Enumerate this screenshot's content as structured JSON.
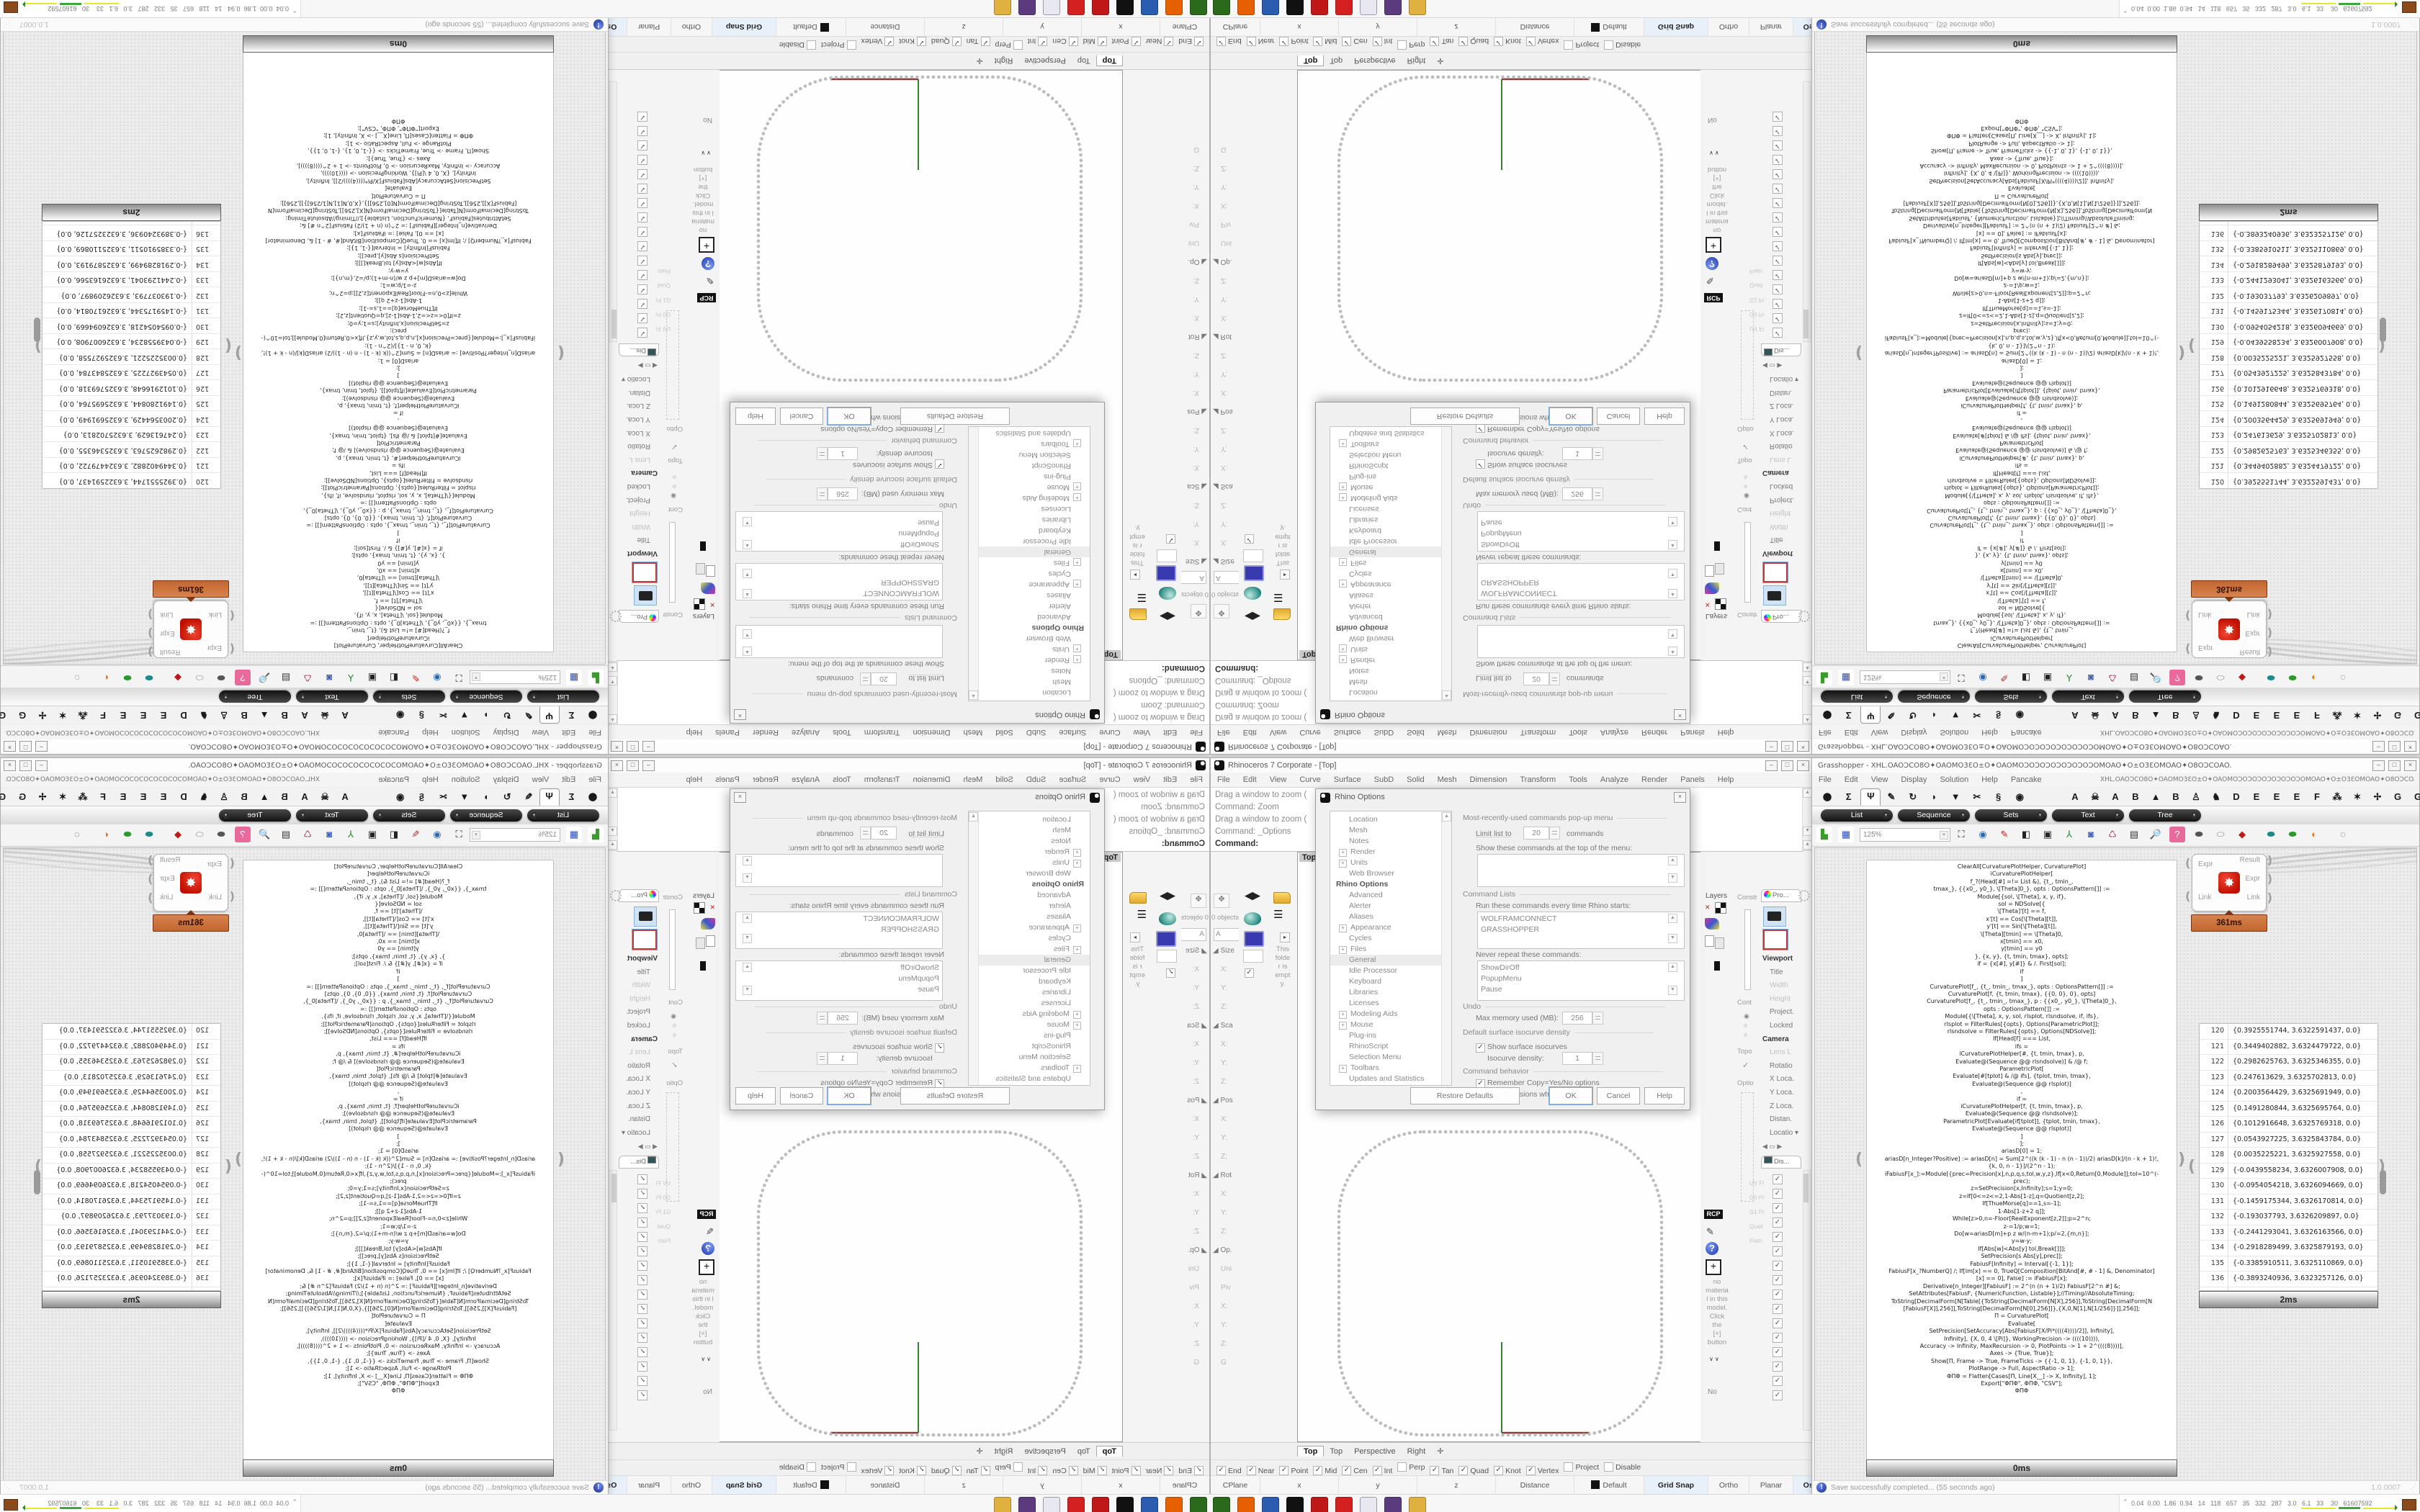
{
  "rhino": {
    "title": "Rhinoceros 7 Corporate - [Top]",
    "menus": [
      "File",
      "Edit",
      "View",
      "Curve",
      "Surface",
      "SubD",
      "Solid",
      "Mesh",
      "Dimension",
      "Transform",
      "Tools",
      "Analyze",
      "Render",
      "Panels",
      "Help"
    ],
    "command_lines": [
      "Drag a window to zoom (",
      "Command: Zoom",
      "Drag a window to zoom (",
      "Command: _Options",
      "Command:"
    ],
    "left_dock": {
      "objects_label": "0 objects",
      "field_value": "A",
      "empty_message": [
        "This",
        "folde",
        "r is",
        "empt",
        "y."
      ],
      "rows": [
        {
          "t": "sec",
          "l": "Size"
        },
        {
          "t": "ax",
          "l": "X:"
        },
        {
          "t": "ax",
          "l": "Y:"
        },
        {
          "t": "ax",
          "l": "Z:"
        },
        {
          "t": "sec",
          "l": "Sca"
        },
        {
          "t": "ax",
          "l": "X:"
        },
        {
          "t": "ax",
          "l": "Y:"
        },
        {
          "t": "ax",
          "l": "Z:"
        },
        {
          "t": "sec",
          "l": "Pos"
        },
        {
          "t": "ax",
          "l": "X:"
        },
        {
          "t": "ax",
          "l": "Y:"
        },
        {
          "t": "ax",
          "l": "Z:"
        },
        {
          "t": "sec",
          "l": "Rot"
        },
        {
          "t": "ax",
          "l": "X:"
        },
        {
          "t": "ax",
          "l": "Y:"
        },
        {
          "t": "ax",
          "l": "Z:"
        },
        {
          "t": "sec",
          "l": "Op."
        },
        {
          "t": "ax",
          "l": "Uni"
        },
        {
          "t": "ax",
          "l": "Piv"
        },
        {
          "t": "ax",
          "l": "X:"
        },
        {
          "t": "ax",
          "l": "Y:"
        },
        {
          "t": "ax",
          "l": "Z:"
        },
        {
          "t": "ax",
          "l": "G"
        }
      ]
    },
    "viewport": {
      "title": "Top",
      "tabs": [
        "Top",
        "Top",
        "Perspective",
        "Right"
      ],
      "new_tab": "✛"
    },
    "right_dock": {
      "layers_title": "Layers",
      "constraint_labels": [
        "Constr",
        "Cont",
        "Topo",
        "Optio"
      ],
      "properties_tab": "Pro...",
      "display_tab": "Dis...",
      "property_rows": [
        {
          "label": "Viewport",
          "kind": "sec"
        },
        {
          "label": "Title",
          "kind": ""
        },
        {
          "label": "Width",
          "kind": "muted"
        },
        {
          "label": "Height",
          "kind": "muted"
        },
        {
          "label": "Project.",
          "kind": ""
        },
        {
          "label": "Locked",
          "kind": ""
        },
        {
          "label": "Camera",
          "kind": "sec"
        },
        {
          "label": "Lens L",
          "kind": "muted"
        },
        {
          "label": "Rotatio",
          "kind": ""
        },
        {
          "label": "X Loca.",
          "kind": ""
        },
        {
          "label": "Y Loca.",
          "kind": ""
        },
        {
          "label": "Z Loca.",
          "kind": ""
        },
        {
          "label": "Distan.",
          "kind": ""
        },
        {
          "label": "Locatio",
          "kind": ""
        }
      ],
      "display_micro_labels": [
        "UV Fl",
        "G0 Pr",
        "G1 Pr",
        "Quali",
        "Flatn"
      ],
      "display_check_count": 16,
      "rcp_label": "RCP",
      "materials_lines": [
        "no",
        "materia",
        "l in this",
        "model.",
        "Click",
        "the",
        "[+]",
        "button"
      ],
      "no_label": "No"
    },
    "osnap": [
      {
        "label": "End",
        "checked": true
      },
      {
        "label": "Near",
        "checked": true
      },
      {
        "label": "Point",
        "checked": true
      },
      {
        "label": "Mid",
        "checked": true
      },
      {
        "label": "Cen",
        "checked": true
      },
      {
        "label": "Int",
        "checked": true
      },
      {
        "label": "Perp",
        "checked": false
      },
      {
        "label": "Tan",
        "checked": true
      },
      {
        "label": "Quad",
        "checked": true
      },
      {
        "label": "Knot",
        "checked": true
      },
      {
        "label": "Vertex",
        "checked": true
      },
      {
        "label": "Project",
        "checked": false
      },
      {
        "label": "Disable",
        "checked": false
      }
    ],
    "statusbar": [
      {
        "label": "CPlane",
        "w": 68
      },
      {
        "label": "x",
        "w": 108
      },
      {
        "label": "y",
        "w": 108
      },
      {
        "label": "z",
        "w": 108
      },
      {
        "label": "Distance",
        "w": 108
      },
      {
        "label": "Default",
        "w": 96,
        "swatch": true
      },
      {
        "label": "Grid Snap",
        "w": 88,
        "active": true
      },
      {
        "label": "Ortho",
        "w": 56
      },
      {
        "label": "Planar",
        "w": 60
      },
      {
        "label": "Osnap",
        "w": 60,
        "active": true
      },
      {
        "label": "SmartTrack",
        "w": 88
      },
      {
        "label": "Gumball",
        "w": 74,
        "active": true
      },
      {
        "label": "Record History",
        "w": 96
      },
      {
        "label": "Filter",
        "w": 50
      }
    ]
  },
  "options_dialog": {
    "title": "Rhino Options",
    "tree": [
      {
        "label": "Location"
      },
      {
        "label": "Mesh"
      },
      {
        "label": "Notes"
      },
      {
        "label": "Render",
        "expand": true
      },
      {
        "label": "Units",
        "expand": true
      },
      {
        "label": "Web Browser"
      },
      {
        "label": "Rhino Options",
        "header": true
      },
      {
        "label": "Advanced"
      },
      {
        "label": "Alerter"
      },
      {
        "label": "Aliases"
      },
      {
        "label": "Appearance",
        "expand": true
      },
      {
        "label": "Cycles"
      },
      {
        "label": "Files",
        "expand": true
      },
      {
        "label": "General",
        "selected": true
      },
      {
        "label": "Idle Processor"
      },
      {
        "label": "Keyboard"
      },
      {
        "label": "Libraries"
      },
      {
        "label": "Licenses"
      },
      {
        "label": "Modeling Aids",
        "expand": true
      },
      {
        "label": "Mouse",
        "expand": true
      },
      {
        "label": "Plug-ins"
      },
      {
        "label": "RhinoScript"
      },
      {
        "label": "Selection Menu"
      },
      {
        "label": "Toolbars",
        "expand": true
      },
      {
        "label": "Updates and Statistics"
      },
      {
        "label": "View",
        "expand": true
      }
    ],
    "mru_group": "Most-recently-used commands pop-up menu",
    "limit_label": "Limit list to",
    "limit_value": "20",
    "limit_suffix": "commands",
    "show_top_label": "Show these commands at the top of the menu:",
    "cmd_lists_group": "Command Lists",
    "run_label": "Run these commands every time Rhino starts:",
    "run_items": [
      "WOLFRAMCONNECT",
      "GRASSHOPPER"
    ],
    "never_label": "Never repeat these commands:",
    "never_items": [
      "ShowDirOff",
      "PopupMenu",
      "Pause"
    ],
    "undo_group": "Undo",
    "max_memory_label": "Max memory used (MB):",
    "max_memory_value": "256",
    "isocurve_group": "Default surface isocurve density",
    "show_isocurves_label": "Show surface isocurves",
    "density_label": "Isocurve density:",
    "density_value": "1",
    "behavior_group": "Command behavior",
    "remember_label": "Remember Copy=Yes/No options",
    "extrusions_label": "Use extrusions when possible",
    "buttons": [
      "Restore Defaults",
      "OK",
      "Cancel",
      "Help"
    ]
  },
  "grasshopper": {
    "title": "Grasshopper - XHL.OAOƆCO8O✦OAOMO3ƐO±O✦OAOMOƆOƆOƆOƆOƆOƆOƆOMOAO✦O±O3ƐOMOAO✦O8OƆCOAO.",
    "menus": [
      "File",
      "Edit",
      "View",
      "Display",
      "Solution",
      "Help",
      "Pancake"
    ],
    "doc_symbols": "XHL.OAOƆCO8O✦OAOMO3ƐO±O✦OAOMOƆOƆOƆOƆOƆOƆOƆOMOAO✦O±O3ƐOMOAO✦O8OƆCOAO.",
    "palette_tabs": [
      {
        "glyph": "⬤",
        "name": "params-icon"
      },
      {
        "glyph": "Σ",
        "name": "maths-icon"
      },
      {
        "glyph": "Ψ",
        "name": "sets-icon",
        "active": true
      },
      {
        "glyph": "✎",
        "name": "vector-icon"
      },
      {
        "glyph": "↻",
        "name": "curve-icon"
      },
      {
        "glyph": "◗",
        "name": "surface-icon"
      },
      {
        "glyph": "▼",
        "name": "mesh-icon"
      },
      {
        "glyph": "✂",
        "name": "intersect-icon"
      },
      {
        "glyph": "§",
        "name": "transform-icon"
      },
      {
        "glyph": "◉",
        "name": "display-icon"
      },
      {
        "glyph": "A",
        "name": "tab-a1"
      },
      {
        "glyph": "☠",
        "name": "tab-skull"
      },
      {
        "glyph": "A",
        "name": "tab-a2"
      },
      {
        "glyph": "B",
        "name": "tab-b1"
      },
      {
        "glyph": "▲",
        "name": "tab-mountain"
      },
      {
        "glyph": "B",
        "name": "tab-b2"
      },
      {
        "glyph": "♙",
        "name": "tab-shield"
      },
      {
        "glyph": "♞",
        "name": "tab-bird"
      },
      {
        "glyph": "D",
        "name": "tab-d"
      },
      {
        "glyph": "E",
        "name": "tab-e1"
      },
      {
        "glyph": "E",
        "name": "tab-e2"
      },
      {
        "glyph": "E",
        "name": "tab-e3"
      },
      {
        "glyph": "F",
        "name": "tab-f"
      },
      {
        "glyph": "⁂",
        "name": "tab-lobster"
      },
      {
        "glyph": "✶",
        "name": "tab-bug"
      },
      {
        "glyph": "✢",
        "name": "tab-moth"
      },
      {
        "glyph": "G",
        "name": "tab-g1"
      },
      {
        "glyph": "G",
        "name": "tab-g2"
      }
    ],
    "categories": [
      "List",
      "Sequence",
      "Sets",
      "Text",
      "Tree"
    ],
    "zoom_value": "125%",
    "toolbar_icons": [
      "new-document",
      "save",
      "zoom-level",
      "zoom-extents",
      "preview-eye",
      "redraw-pen",
      "preview-mesh",
      "preview-shaded",
      "axes",
      "cluster",
      "gha",
      "script-page",
      "find",
      "help-bag",
      "bean-gray",
      "bean-white",
      "gem-red",
      "bean-teal",
      "bean-green",
      "bean-orange",
      "selection-ellipse"
    ],
    "code_lines": [
      "ClearAll[CurvaturePlotHelper, CurvaturePlot]",
      "iCurvaturePlotHelper[",
      "f_?(Head[#] =!= List &), {t_, tmin_,",
      "tmax_}, {{x0_, y0_}, \\[Theta]0_}, opts : OptionsPattern[]] :=",
      "Module[{sol, \\[Theta], x, y, if},",
      "sol = NDSolve[{",
      "\\[Theta]'[t] == f,",
      "x'[t] == Cos[\\[Theta][t]],",
      "y'[t] == Sin[\\[Theta][t]],",
      "\\[Theta][tmin] == \\[Theta]0,",
      "x[tmin] == x0,",
      "y[tmin] == y0",
      "}, {x, y}, {t, tmin, tmax}, opts];",
      "if = {x[#], y[#]} & /. First[sol];",
      "if",
      "]",
      "",
      "CurvaturePlot[f_, {t_, tmin_, tmax_}, opts : OptionsPattern[]] :=",
      "CurvaturePlot[f, {t, tmin, tmax}, {{0, 0}, 0}, opts]",
      "CurvaturePlot[f_, {t_, tmin_, tmax_}, p : {{x0_, y0_}, \\[Theta]0_},",
      "opts : OptionsPattern[]] :=",
      "Module[{\\[Theta], x, y, sol, rlsplot, rlsndsolve, if, ifs},",
      "rlsplot = FilterRules[{opts}, Options[ParametricPlot]];",
      "rlsndsolve = FilterRules[{opts}, Options[NDSolve]];",
      "If[Head[f] === List,",
      "ifs =",
      "iCurvaturePlotHelper[#, {t, tmin, tmax}, p,",
      "Evaluate@(Sequence @@ rlsndsolve)] & /@ f;",
      "ParametricPlot[",
      "Evaluate[#[tplot] & /@ ifs], {tplot, tmin, tmax},",
      "Evaluate@(Sequence @@ rlsplot)]",
      "",
      ",",
      "if =",
      "iCurvaturePlotHelper[f, {t, tmin, tmax}, p,",
      "Evaluate@(Sequence @@ rlsndsolve)];",
      "ParametricPlot[Evaluate[if[tplot]], {tplot, tmin, tmax},",
      "Evaluate@(Sequence @@ rlsplot)]",
      "]",
      "];",
      "",
      "ariasD[0] = 1;",
      "ariasD[n_Integer?Positive] := ariasD[n] = Sum[2^((k (k - 1) - n (n - 1))/2) ariasD[k]/(n - k + 1)!,",
      "{k, 0, n - 1}]/(2^n - 1);",
      "iFabiusF[x_]:=Module[{prec=Precision[x],n,p,q,s,tol,w,y,z},If[x<0,Return[0,Module]];tol=10^(-",
      "prec);",
      "z=SetPrecision[x,Infinity];s=1;y=0;",
      "z=If[0<=z<=2,1-Abs[1-z],q=Quotient[z,2];",
      "If[ThueMorse[q]==1,s=-1];",
      "1-Abs[1-z+2 q]];",
      "While[z>0,n=-Floor[RealExponent[z,2]];p=2^n;",
      "z-=1/p;w=1;",
      "Do[w=ariasD[m]+p z w/(n-m+1);p/=2,{m,n}];",
      "y=w-y;",
      "If[Abs[w]<Abs[y] tol,Break[]]];",
      "SetPrecision[s Abs[y],prec]];",
      "FabiusF[Infinity] = Interval[{-1, 1}];",
      "FabiusF[x_?NumberQ] /; If[Im[x] == 0, TrueQ[Composition[BitAnd[#, # - 1] &, Denominator]",
      "[x] == 0], False] := iFabiusF[x];",
      "Derivative[n_Integer][FabiusF] := 2^(n (n + 1)/2) FabiusF[2^n #] &;",
      "SetAttributes[FabiusF, {NumericFunction, Listable}];//Timing//AbsoluteTiming;",
      "",
      "ToString[DecimalForm[N[Table[{ToString[DecimalForm[N[X],256]],ToString[DecimalForm[N",
      "[FabiusF[X]],256]],ToString[DecimalForm[N[0],256]]},{X,0,N[1],N[1/256]}]],256]];",
      "",
      "Π = CurvaturePlot[",
      "Evaluate[",
      "SetPrecision[SetAccuracy[Abs[FabiusF[X/Pi*((((4))))/2]], Infinity],",
      "Infinity], {X, 0, 4 \\[Pi]}, WorkingPrecision -> ((((10)))),",
      "Accuracy -> Infinity, MaxRecursion -> 0, PlotPoints -> 1 + 2^((((8))))],",
      "Axes -> {True, True}];",
      "Show[Π, Frame -> True, FrameTicks -> {{-1, 0, 1}, {-1, 0, 1}},",
      "PlotRange -> Full, AspectRatio -> 1];",
      "ΦΠΦ = Flatten[Cases[Π, Line[X__] -> X, Infinity], 1];",
      "Export[\"ΦΠΦ\", ΦΠΦ, \"CSV\"];",
      "ΦΠΦ"
    ],
    "component": {
      "inputs": [
        "Expr",
        "Link"
      ],
      "outputs": [
        "Result",
        "Expr",
        "Link"
      ],
      "time": "361ms"
    },
    "points": {
      "rows": [
        {
          "i": "120",
          "v": "{0.3925551744, 3.6322591437, 0.0}"
        },
        {
          "i": "121",
          "v": "{0.3449402882, 3.6324479722, 0.0}"
        },
        {
          "i": "122",
          "v": "{0.2982625763, 3.6325346355, 0.0}"
        },
        {
          "i": "123",
          "v": "{0.247613629, 3.6325702813, 0.0}"
        },
        {
          "i": "124",
          "v": "{0.2003564429, 3.6325691949, 0.0}"
        },
        {
          "i": "125",
          "v": "{0.1491280844, 3.6325695764, 0.0}"
        },
        {
          "i": "126",
          "v": "{0.1012916648, 3.6325769318, 0.0}"
        },
        {
          "i": "127",
          "v": "{0.0543927225, 3.6325843784, 0.0}"
        },
        {
          "i": "128",
          "v": "{0.0035225221, 3.6325927558, 0.0}"
        },
        {
          "i": "129",
          "v": "{-0.0439558234, 3.6326007908, 0.0}"
        },
        {
          "i": "130",
          "v": "{-0.0954054218, 3.6326094669, 0.0}"
        },
        {
          "i": "131",
          "v": "{-0.1459175344, 3.6326170814, 0.0}"
        },
        {
          "i": "132",
          "v": "{-0.193037793, 3.6326209897, 0.0}"
        },
        {
          "i": "133",
          "v": "{-0.2441293041, 3.6326163566, 0.0}"
        },
        {
          "i": "134",
          "v": "{-0.2918289499, 3.6325879193, 0.0}"
        },
        {
          "i": "135",
          "v": "{-0.3385910511, 3.6325110869, 0.0}"
        },
        {
          "i": "136",
          "v": "{-0.3893240936, 3.6323257126, 0.0}"
        },
        {
          "i": "137",
          "v": "{-0.4366640544, 3.6219882257, 0.0}"
        }
      ],
      "time": "2ms"
    },
    "panel_time": "0ms",
    "status_text": "Save successfully completed... (55 seconds ago)",
    "version": "1.0.0007"
  },
  "taskbar": {
    "icons": [
      "gpu-monitor",
      "firefox",
      "floppy-64",
      "rhino-app",
      "red-badge",
      "red-gear",
      "notepad",
      "gitkraken",
      "palette"
    ],
    "monitor_values": "0.04  0.00  1.86  0.94   14   118   657   35   332   287   3.0   6.1   33    30   61607592"
  }
}
